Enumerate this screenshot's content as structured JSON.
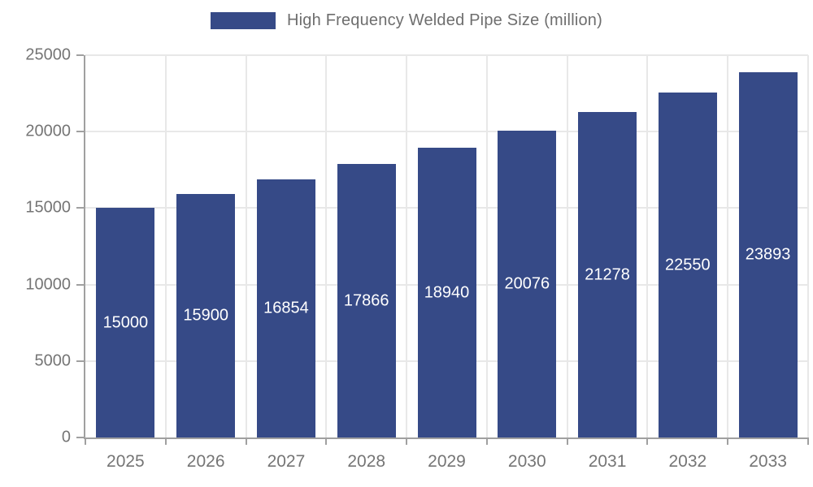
{
  "chart_data": {
    "type": "bar",
    "title": "High Frequency Welded Pipe Size (million)",
    "legend_entries": [
      "High Frequency Welded Pipe Size (million)"
    ],
    "legend_position": "top",
    "categories": [
      "2025",
      "2026",
      "2027",
      "2028",
      "2029",
      "2030",
      "2031",
      "2032",
      "2033"
    ],
    "values": [
      15000,
      15900,
      16854,
      17866,
      18940,
      20076,
      21278,
      22550,
      23893
    ],
    "xlabel": "",
    "ylabel": "",
    "ylim": [
      0,
      25000
    ],
    "yticks": [
      0,
      5000,
      10000,
      15000,
      20000,
      25000
    ],
    "grid": true,
    "value_labels_shown": true,
    "colors": {
      "bar": "#364A87",
      "value_label": "#ffffff",
      "tick_label": "#757575",
      "title": "#6e6e6e",
      "axis_line": "#a0a0a0",
      "gridline": "#e8e8e8"
    }
  }
}
